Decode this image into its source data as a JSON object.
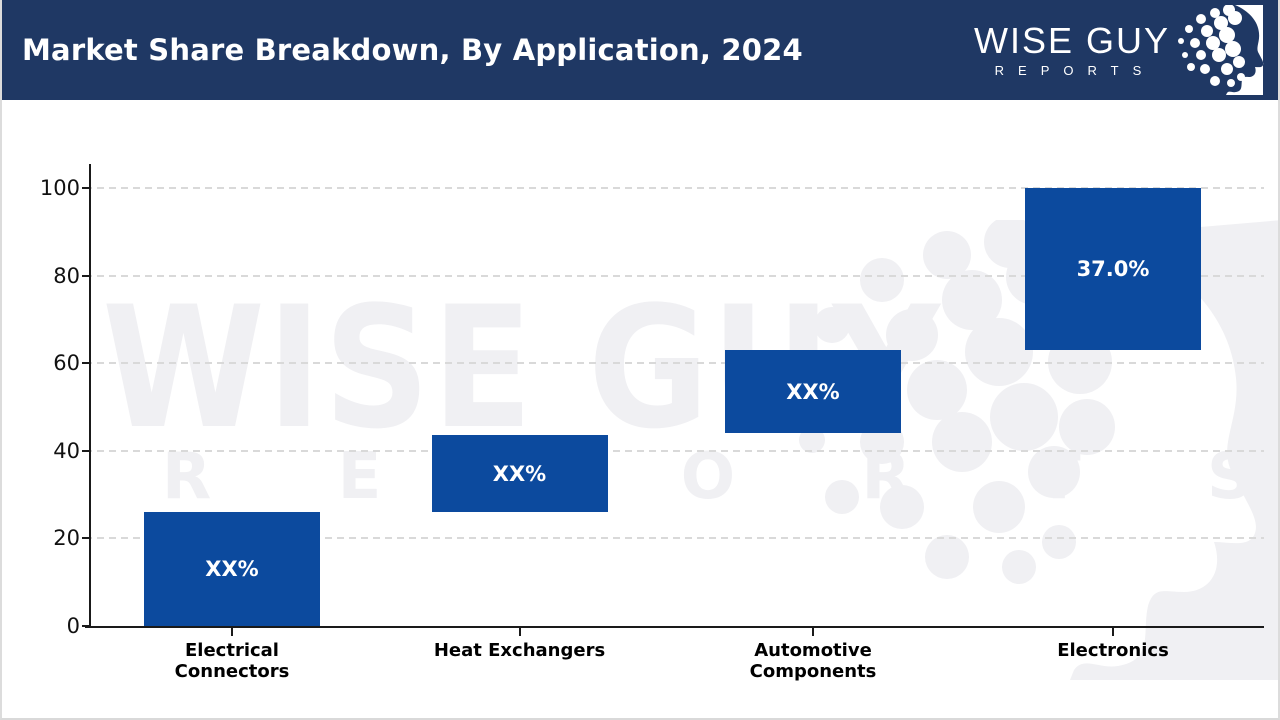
{
  "header": {
    "title": "Market Share Breakdown, By Application, 2024",
    "logo": {
      "line1": "WISE GUY",
      "line2": "REPORTS"
    }
  },
  "watermark": {
    "line1": "WISE GUY",
    "line2": "R E P O R T S"
  },
  "chart_data": {
    "type": "bar",
    "subtype": "waterfall",
    "title": "Market Share Breakdown, By Application, 2024",
    "categories": [
      "Electrical\nConnectors",
      "Heat Exchangers",
      "Automotive\nComponents",
      "Electronics"
    ],
    "bars": [
      {
        "category": "Electrical Connectors",
        "start": 0,
        "end": 26,
        "value_label": "XX%"
      },
      {
        "category": "Heat Exchangers",
        "start": 26,
        "end": 43.5,
        "value_label": "XX%"
      },
      {
        "category": "Automotive Components",
        "start": 44,
        "end": 63,
        "value_label": "XX%"
      },
      {
        "category": "Electronics",
        "start": 63,
        "end": 100,
        "value_label": "37.0%"
      }
    ],
    "xlabel": "",
    "ylabel": "",
    "ylim": [
      0,
      105
    ],
    "yticks": [
      0,
      20,
      40,
      60,
      80,
      100
    ],
    "grid": "horizontal-dashed",
    "legend": "none"
  },
  "colors": {
    "header_bg": "#1f3864",
    "bar": "#0c4a9e",
    "grid": "#d9d9d9",
    "axis": "#1a1a1a",
    "bar_label": "#ffffff",
    "watermark": "#f0f0f3"
  }
}
